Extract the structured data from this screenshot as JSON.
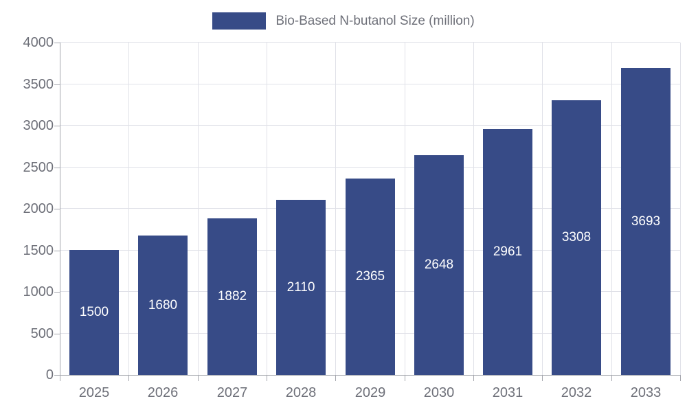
{
  "legend": {
    "label": "Bio-Based N-butanol Size (million)"
  },
  "colors": {
    "bar": "#374b87",
    "grid": "#e0e1e8",
    "axis": "#a4a6ad",
    "tick_label": "#6e7079",
    "legend_text": "#6e7079",
    "bar_label": "#ffffff",
    "background": "#ffffff"
  },
  "chart_data": {
    "type": "bar",
    "title": "Bio-Based N-butanol Size (million)",
    "series_name": "Bio-Based N-butanol Size (million)",
    "categories": [
      "2025",
      "2026",
      "2027",
      "2028",
      "2029",
      "2030",
      "2031",
      "2032",
      "2033"
    ],
    "values": [
      1500,
      1680,
      1882,
      2110,
      2365,
      2648,
      2961,
      3308,
      3693
    ],
    "xlabel": "",
    "ylabel": "",
    "ylim": [
      0,
      4000
    ],
    "yticks": [
      0,
      500,
      1000,
      1500,
      2000,
      2500,
      3000,
      3500,
      4000
    ],
    "grid": "horizontal-and-vertical",
    "legend_position": "top-center",
    "bar_labels_visible": true,
    "bar_label_position": "inside-middle"
  }
}
